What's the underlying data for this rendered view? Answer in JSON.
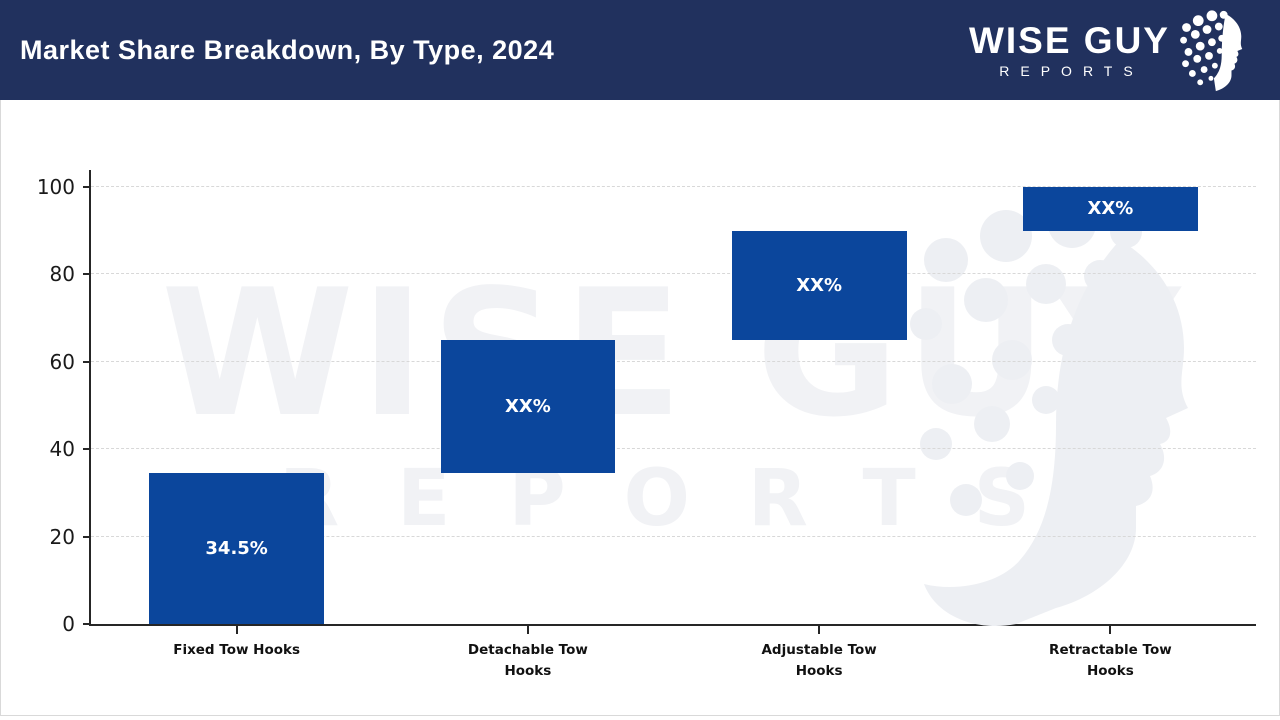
{
  "header": {
    "title": "Market Share Breakdown, By Type, 2024",
    "logo": {
      "wordmark": "WISE GUY",
      "subtext": "REPORTS"
    }
  },
  "watermark": {
    "line1": "WISE GUY",
    "line2": "REPORTS"
  },
  "colors": {
    "header_bg": "#21315e",
    "bar": "#0b469c",
    "axis": "#262626",
    "grid": "#d8d8d8",
    "bar_label": "#ffffff",
    "watermark": "#f1f2f5"
  },
  "chart_data": {
    "type": "bar",
    "subtype": "waterfall",
    "title": "Market Share Breakdown, By Type, 2024",
    "categories": [
      "Fixed Tow Hooks",
      "Detachable Tow Hooks",
      "Adjustable Tow Hooks",
      "Retractable Tow Hooks"
    ],
    "series": [
      {
        "name": "Market Share",
        "segments": [
          {
            "category": "Fixed Tow Hooks",
            "start": 0,
            "end": 34.5,
            "value": 34.5,
            "label": "34.5%"
          },
          {
            "category": "Detachable Tow Hooks",
            "start": 34.5,
            "end": 65,
            "value": 30.5,
            "label": "XX%"
          },
          {
            "category": "Adjustable Tow Hooks",
            "start": 65,
            "end": 90,
            "value": 25,
            "label": "XX%"
          },
          {
            "category": "Retractable Tow Hooks",
            "start": 90,
            "end": 100,
            "value": 10,
            "label": "XX%"
          }
        ]
      }
    ],
    "xlabel": "",
    "ylabel": "",
    "ylim": [
      0,
      100
    ],
    "yticks": [
      0,
      20,
      40,
      60,
      80,
      100
    ],
    "grid": "horizontal-dashed",
    "legend": "none"
  }
}
